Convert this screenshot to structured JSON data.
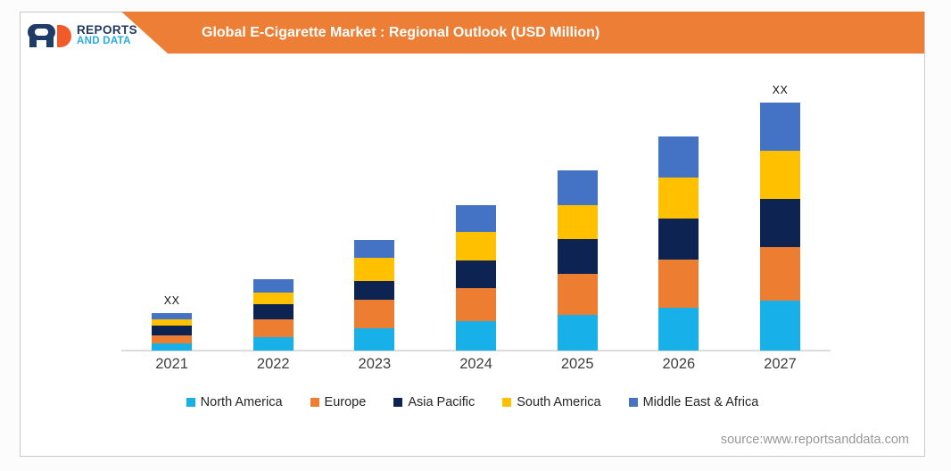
{
  "logo": {
    "line1": "REPORTS",
    "line2": "AND DATA",
    "line1_color": "#22395f",
    "line2_color": "#29abe2",
    "mark_r_color": "#1f3c68",
    "mark_d_color": "#f15b2b"
  },
  "header": {
    "title": "Global E-Cigarette Market : Regional Outlook (USD Million)",
    "banner_color": "#ec7f35",
    "text_color": "#ffffff"
  },
  "chart_data": {
    "type": "bar",
    "stacked": true,
    "title": "Global E-Cigarette Market : Regional Outlook (USD Million)",
    "xlabel": "",
    "ylabel": "",
    "categories": [
      "2021",
      "2022",
      "2023",
      "2024",
      "2025",
      "2026",
      "2027"
    ],
    "series": [
      {
        "name": "North America",
        "color": "#17b0e8",
        "values": [
          8,
          15,
          25,
          33,
          40,
          48,
          56
        ]
      },
      {
        "name": "Europe",
        "color": "#ed7d31",
        "values": [
          9,
          20,
          32,
          37,
          46,
          54,
          60
        ]
      },
      {
        "name": "Asia Pacific",
        "color": "#0d2453",
        "values": [
          11,
          17,
          21,
          31,
          39,
          46,
          54
        ]
      },
      {
        "name": "South America",
        "color": "#ffc000",
        "values": [
          7,
          13,
          26,
          32,
          38,
          46,
          54
        ]
      },
      {
        "name": "Middle East & Africa",
        "color": "#4472c4",
        "values": [
          7,
          15,
          20,
          30,
          39,
          46,
          54
        ]
      }
    ],
    "ylim": [
      0,
      300
    ],
    "value_axis_visible": false,
    "gridlines": false,
    "legend_position": "bottom",
    "bar_annotations": [
      {
        "category": "2021",
        "text": "XX"
      },
      {
        "category": "2027",
        "text": "XX"
      }
    ]
  },
  "footer": {
    "source": "source:www.reportsanddata.com"
  }
}
